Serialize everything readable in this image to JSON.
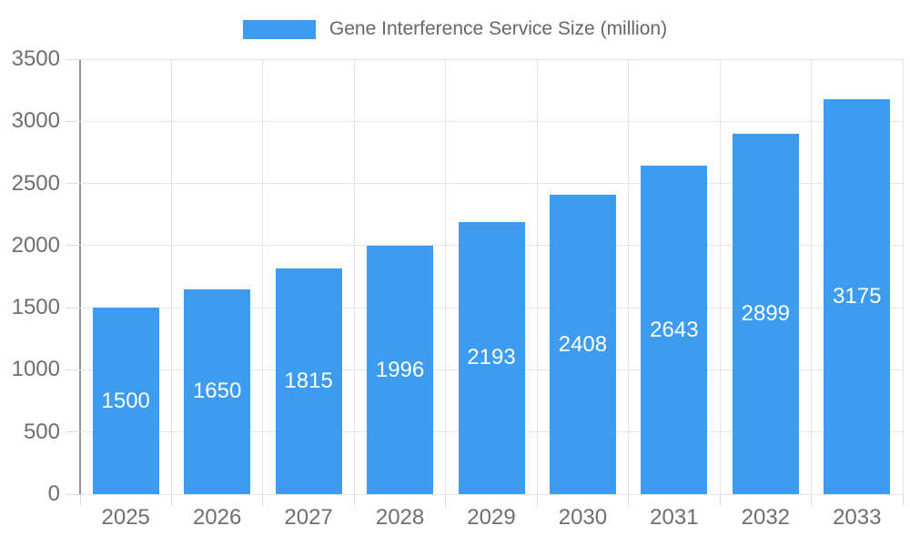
{
  "legend": {
    "label": "Gene Interference Service Size (million)"
  },
  "colors": {
    "bar": "#3d9cf0",
    "grid": "#e5e5e5",
    "tick": "#dcdcdc",
    "axis_line": "#909090",
    "axis_text": "#6e6e6e",
    "legend_text": "#666666",
    "bar_label": "#ffffff",
    "background": "#ffffff"
  },
  "chart_data": {
    "type": "bar",
    "title": "",
    "xlabel": "",
    "ylabel": "",
    "categories": [
      "2025",
      "2026",
      "2027",
      "2028",
      "2029",
      "2030",
      "2031",
      "2032",
      "2033"
    ],
    "series": [
      {
        "name": "Gene Interference Service Size (million)",
        "values": [
          1500,
          1650,
          1815,
          1996,
          2193,
          2408,
          2643,
          2899,
          3175
        ]
      }
    ],
    "bar_labels_visible": true,
    "bar_label_position": "center-inside",
    "ylim": [
      0,
      3500
    ],
    "ytick_step": 500,
    "yticks": [
      0,
      500,
      1000,
      1500,
      2000,
      2500,
      3000,
      3500
    ],
    "grid": true,
    "legend_position": "top-center"
  }
}
